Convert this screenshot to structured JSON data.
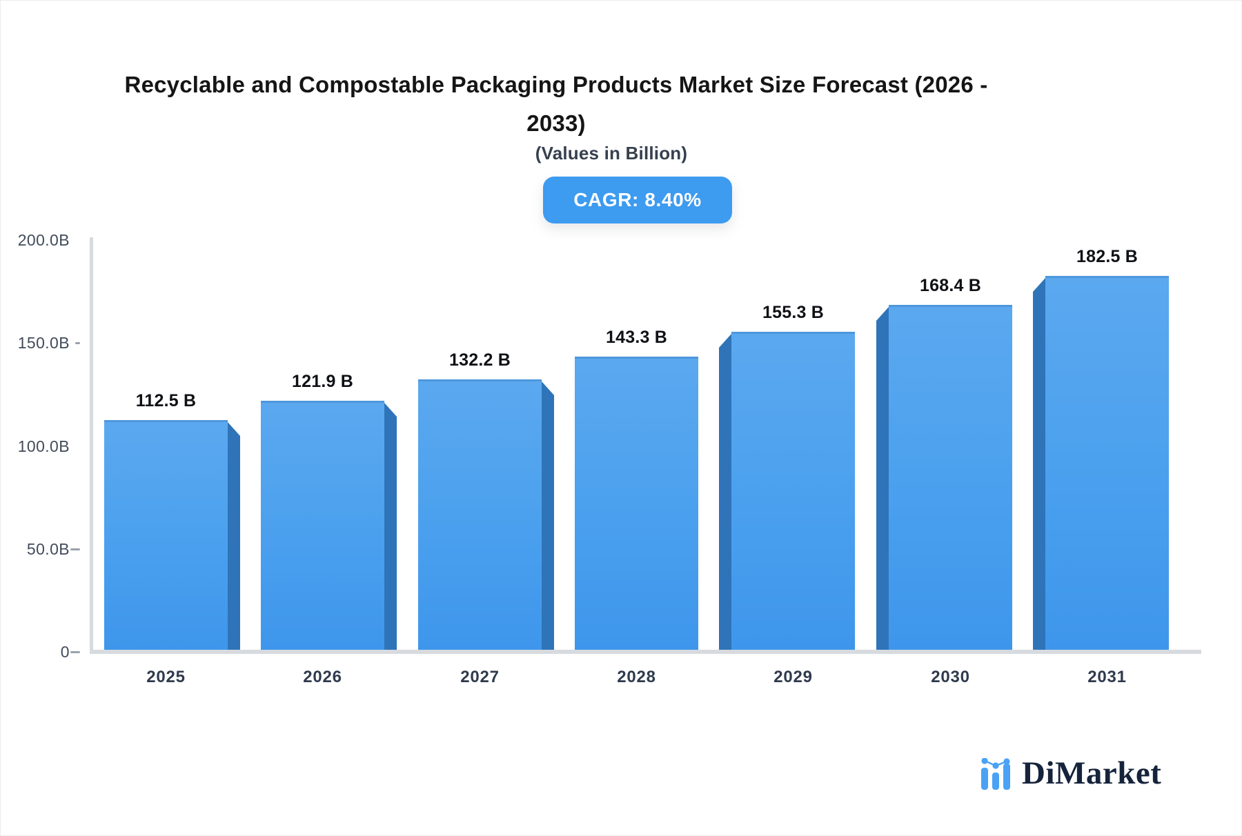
{
  "header": {
    "title_line1": "Recyclable and Compostable Packaging Products Market Size Forecast (2026 -",
    "title_line2": "2033)",
    "subtitle": "(Values in Billion)",
    "cagr_badge": "CAGR: 8.40%"
  },
  "chart_data": {
    "type": "bar",
    "title": "Recyclable and Compostable Packaging Products Market Size Forecast (2026 - 2033)",
    "subtitle": "(Values in Billion)",
    "cagr_percent": 8.4,
    "categories": [
      "2025",
      "2026",
      "2027",
      "2028",
      "2029",
      "2030",
      "2031"
    ],
    "values": [
      112.5,
      121.9,
      132.2,
      143.3,
      155.3,
      168.4,
      182.5
    ],
    "value_labels": [
      "112.5 B",
      "121.9 B",
      "132.2 B",
      "143.3 B",
      "155.3 B",
      "168.4 B",
      "182.5 B"
    ],
    "ylim": [
      0,
      200
    ],
    "ytick_labels": [
      "200.0B",
      "150.0B",
      "100.0B",
      "50.0B",
      "0"
    ],
    "grid": false,
    "legend": false,
    "bar_style": "3d-extruded"
  },
  "colors": {
    "badge_bg": "#3D9BF0",
    "bar_top": "#5BA8EF",
    "bar_bottom": "#3E96EC",
    "bar_side": "#2F74B8",
    "axis_gray": "#D7DADE",
    "tick_gray": "#9aa1ab",
    "logo_navy": "#16233C",
    "logo_blue": "#4AA2F5"
  },
  "logo": {
    "text": "DiMarket",
    "icon": "bar-line-chart-icon"
  }
}
